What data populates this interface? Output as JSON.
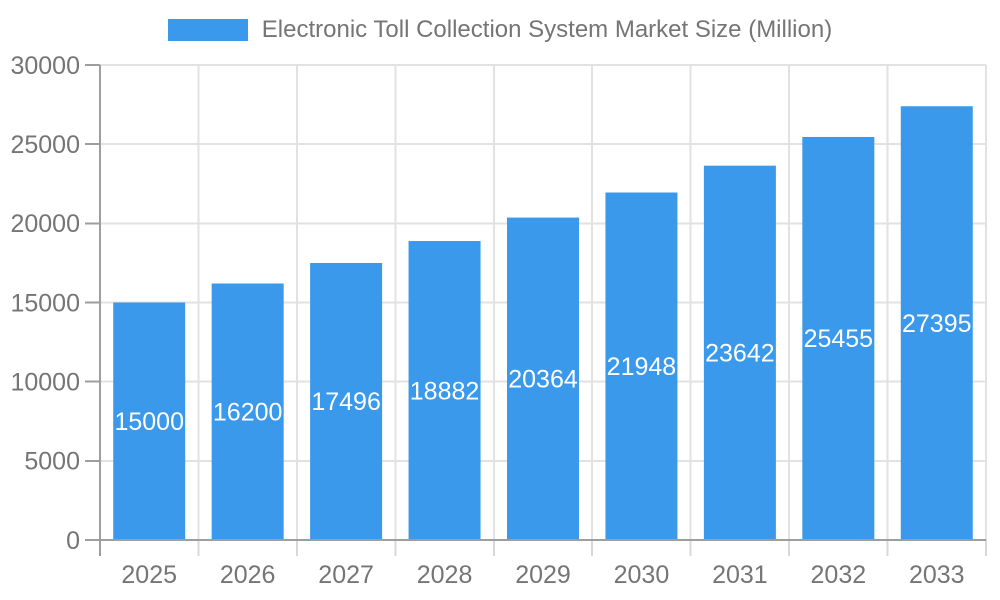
{
  "legend": {
    "label": "Electronic Toll Collection System Market Size (Million)"
  },
  "chart_data": {
    "type": "bar",
    "title": "Electronic Toll Collection System Market Size (Million)",
    "categories": [
      "2025",
      "2026",
      "2027",
      "2028",
      "2029",
      "2030",
      "2031",
      "2032",
      "2033"
    ],
    "values": [
      15000,
      16200,
      17496,
      18882,
      20364,
      21948,
      23642,
      25455,
      27395
    ],
    "xlabel": "",
    "ylabel": "",
    "ylim": [
      0,
      30000
    ],
    "ytick_interval": 5000,
    "grid": true,
    "legend_position": "top-center",
    "colors": {
      "bar": "#3B99EC",
      "bar_label": "#FFFFFF",
      "axis": "#9E9E9E",
      "grid": "#E2E2E2",
      "minor_tick": "#D8D8D8",
      "tick_label": "#757575"
    }
  }
}
